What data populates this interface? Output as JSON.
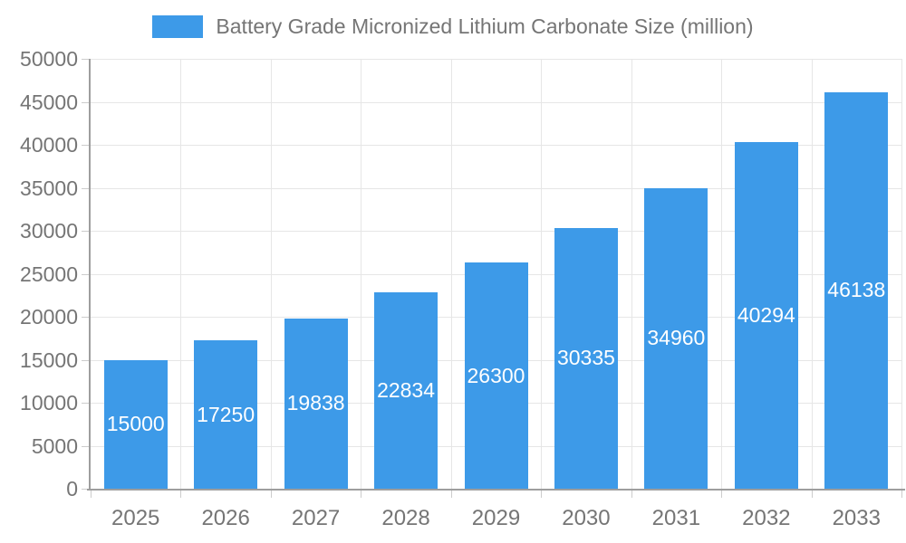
{
  "chart_data": {
    "type": "bar",
    "title": "Battery Grade Micronized Lithium Carbonate Size (million)",
    "categories": [
      "2025",
      "2026",
      "2027",
      "2028",
      "2029",
      "2030",
      "2031",
      "2032",
      "2033"
    ],
    "values": [
      15000,
      17250,
      19838,
      22834,
      26300,
      30335,
      34960,
      40294,
      46138
    ],
    "xlabel": "",
    "ylabel": "",
    "ylim": [
      0,
      50000
    ],
    "ytick_step": 5000,
    "ytick_labels": [
      "0",
      "5000",
      "10000",
      "15000",
      "20000",
      "25000",
      "30000",
      "35000",
      "40000",
      "45000",
      "50000"
    ],
    "grid": true,
    "legend_position": "top",
    "colors": {
      "bar": "#3d9ae8",
      "grid": "#e6e6e6",
      "axis_line": "#9e9e9e",
      "tick": "#cccccc",
      "axis_text": "#757575",
      "value_label": "#ffffff",
      "background": "#ffffff"
    }
  }
}
